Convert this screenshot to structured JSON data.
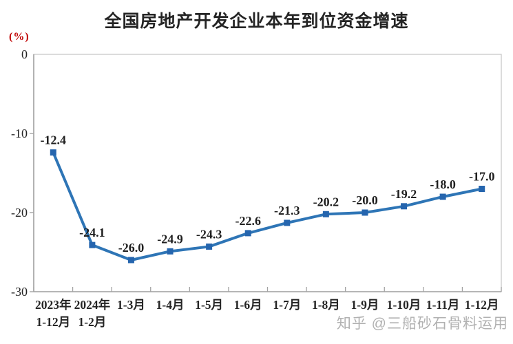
{
  "title": "全国房地产开发企业本年到位资金增速",
  "watermark": "知乎 @三船砂石骨料运用",
  "chart_data": {
    "type": "line",
    "title": "全国房地产开发企业本年到位资金增速",
    "xlabel": "",
    "ylabel": "(%)",
    "unit_label": "(%)",
    "categories": [
      {
        "line1": "2023年",
        "line2": "1-12月"
      },
      {
        "line1": "2024年",
        "line2": "1-2月"
      },
      {
        "line1": "1-3月",
        "line2": ""
      },
      {
        "line1": "1-4月",
        "line2": ""
      },
      {
        "line1": "1-5月",
        "line2": ""
      },
      {
        "line1": "1-6月",
        "line2": ""
      },
      {
        "line1": "1-7月",
        "line2": ""
      },
      {
        "line1": "1-8月",
        "line2": ""
      },
      {
        "line1": "1-9月",
        "line2": ""
      },
      {
        "line1": "1-10月",
        "line2": ""
      },
      {
        "line1": "1-11月",
        "line2": ""
      },
      {
        "line1": "1-12月",
        "line2": ""
      }
    ],
    "values": [
      -12.4,
      -24.1,
      -26.0,
      -24.9,
      -24.3,
      -22.6,
      -21.3,
      -20.2,
      -20.0,
      -19.2,
      -18.0,
      -17.0
    ],
    "data_labels": [
      "-12.4",
      "-24.1",
      "-26.0",
      "-24.9",
      "-24.3",
      "-22.6",
      "-21.3",
      "-20.2",
      "-20.0",
      "-19.2",
      "-18.0",
      "-17.0"
    ],
    "y_ticks": [
      0,
      -10,
      -20,
      -30
    ],
    "y_tick_labels": [
      "0",
      "-10",
      "-20",
      "-30"
    ],
    "ylim": [
      -30,
      0
    ],
    "grid": false,
    "legend": "none",
    "line_color": "#2E75B6",
    "marker_color": "#2565AE",
    "axis_color": "#a3a3a3",
    "border_color": "#c9c9c9",
    "label_color": "#1f1f1f",
    "tick_label_color": "#242424",
    "unit_color": "#c00000"
  }
}
